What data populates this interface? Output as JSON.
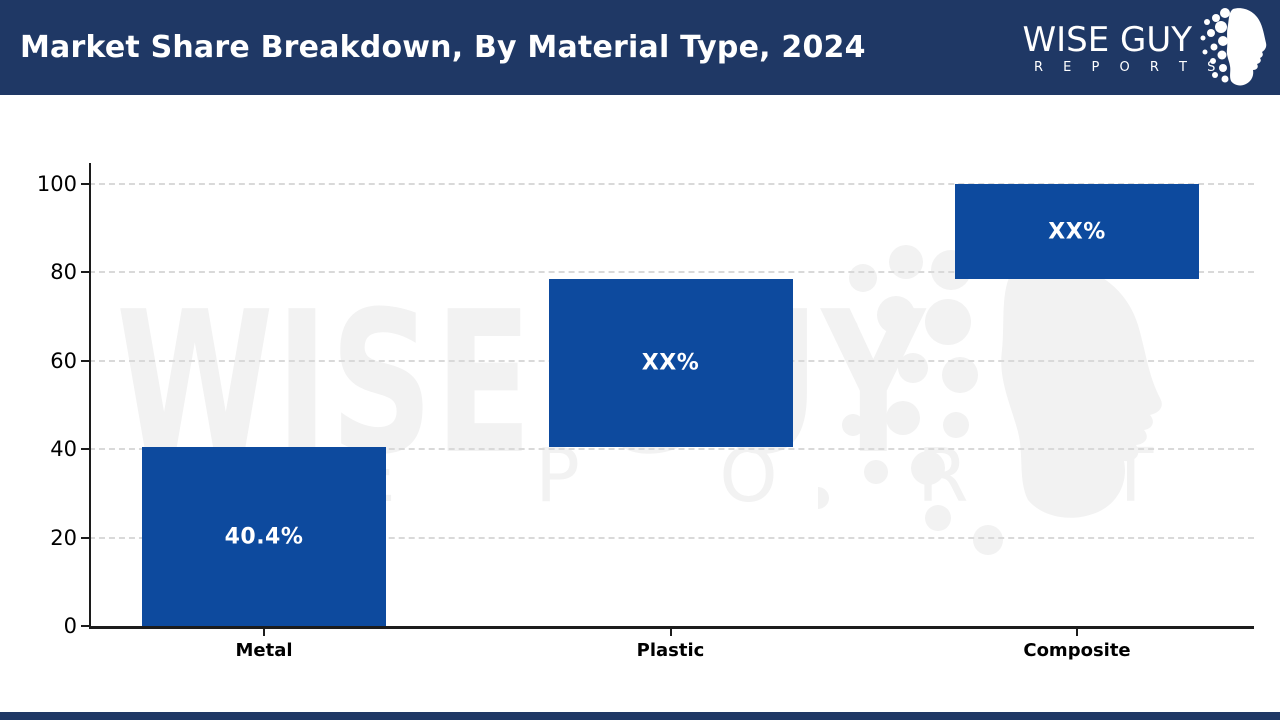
{
  "header": {
    "title": "Market Share Breakdown, By Material Type, 2024",
    "logo": {
      "line1": "WISE GUY",
      "line2": "R E P O R T S",
      "head_icon": "dotted-head-profile"
    }
  },
  "watermark": {
    "line1": "WISE GUY",
    "line2": "R E P O R T S",
    "head_icon": "dotted-head-profile"
  },
  "chart_data": {
    "type": "bar",
    "subtype": "waterfall",
    "title": "Market Share Breakdown, By Material Type, 2024",
    "xlabel": "",
    "ylabel": "",
    "categories": [
      "Metal",
      "Plastic",
      "Composite"
    ],
    "segments": [
      {
        "category": "Metal",
        "start": 0,
        "end": 40.4,
        "label": "40.4%"
      },
      {
        "category": "Plastic",
        "start": 40.4,
        "end": 78.4,
        "label": "XX%"
      },
      {
        "category": "Composite",
        "start": 78.4,
        "end": 100,
        "label": "XX%"
      }
    ],
    "yticks": [
      0,
      20,
      40,
      60,
      80,
      100
    ],
    "ylim": [
      0,
      100
    ],
    "grid": "horizontal-dashed",
    "legend": "none",
    "bar_color": "#0d4a9e",
    "bar_label_color": "#ffffff"
  },
  "colors": {
    "band_navy": "#1f3865",
    "bar_blue": "#0d4a9e",
    "watermark_gray": "#f2f2f2",
    "gridline_gray": "#d9d9d9",
    "axis_black": "#1c1c1c"
  }
}
